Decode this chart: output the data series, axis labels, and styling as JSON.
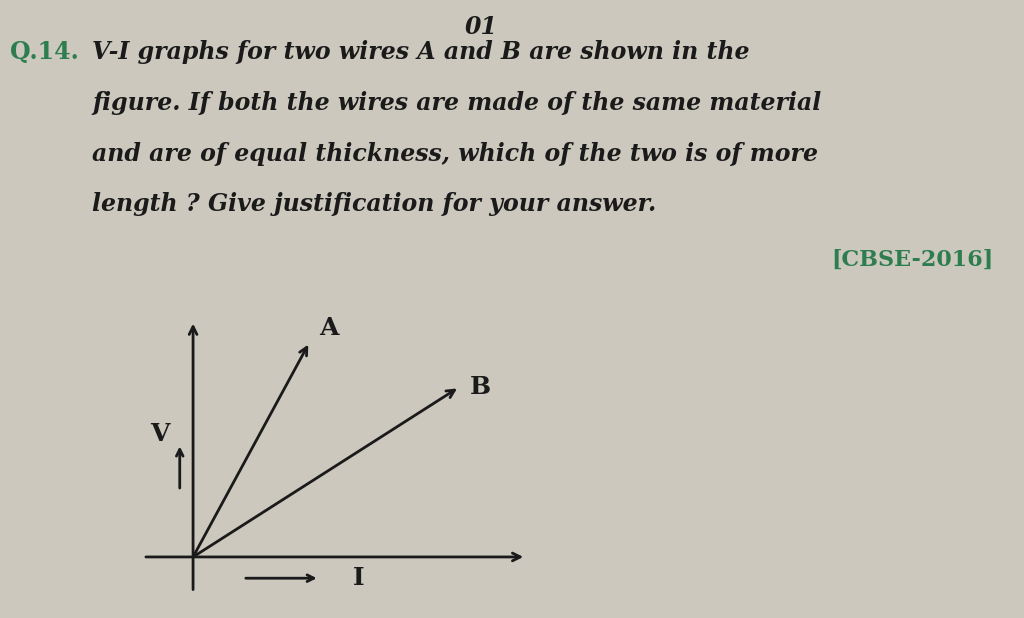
{
  "background_color": "#ccc8be",
  "question_number": "Q.14.",
  "question_line1": "V-I graphs for two wires A and B are shown in the",
  "question_line2": "figure. If both the wires are made of the same material",
  "question_line3": "and are of equal thickness, which of the two is of more",
  "question_line4": "length ? Give justification for your answer.",
  "citation": "[CBSE-2016]",
  "citation_color": "#2e7d4f",
  "question_color": "#1a1a1a",
  "qnum_color": "#2e7d4f",
  "line_color": "#1a1a1a",
  "label_A": "A",
  "label_B": "B",
  "label_V": "V",
  "label_I": "I",
  "line_A_slope": 2.6,
  "line_B_slope": 0.9,
  "font_size_question": 17,
  "font_size_citation": 16,
  "font_size_graph_labels": 16,
  "font_family": "serif"
}
